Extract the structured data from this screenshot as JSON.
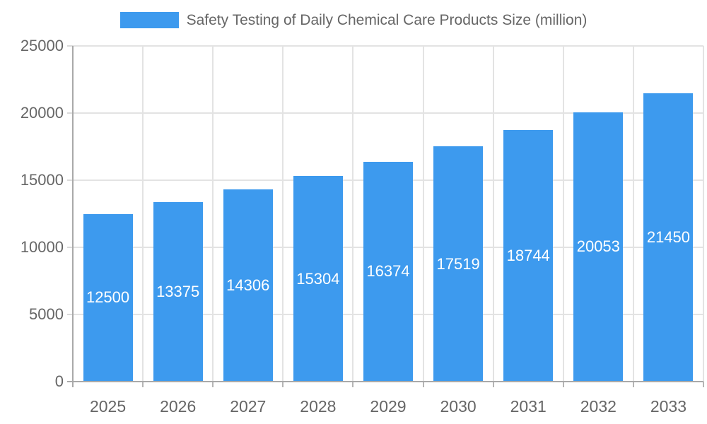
{
  "legend": {
    "label": "Safety Testing of Daily Chemical Care Products Size (million)",
    "swatch_color": "#3d9aee"
  },
  "chart_data": {
    "type": "bar",
    "title": "Safety Testing of Daily Chemical Care Products Size (million)",
    "categories": [
      "2025",
      "2026",
      "2027",
      "2028",
      "2029",
      "2030",
      "2031",
      "2032",
      "2033"
    ],
    "values": [
      12500,
      13375,
      14306,
      15304,
      16374,
      17519,
      18744,
      20053,
      21450
    ],
    "value_labels": [
      "12500",
      "13375",
      "14306",
      "15304",
      "16374",
      "17519",
      "18744",
      "20053",
      "21450"
    ],
    "xlabel": "",
    "ylabel": "",
    "ylim": [
      0,
      25000
    ],
    "ytick_step": 5000,
    "ytick_labels": [
      "0",
      "5000",
      "10000",
      "15000",
      "20000",
      "25000"
    ],
    "grid": true,
    "legend_position": "top",
    "bar_color": "#3d9aee",
    "value_label_color": "#ffffff",
    "axis_text_color": "#666666",
    "gridline_color": "#e3e3e3",
    "axis_line_color": "#a9a9a9"
  }
}
